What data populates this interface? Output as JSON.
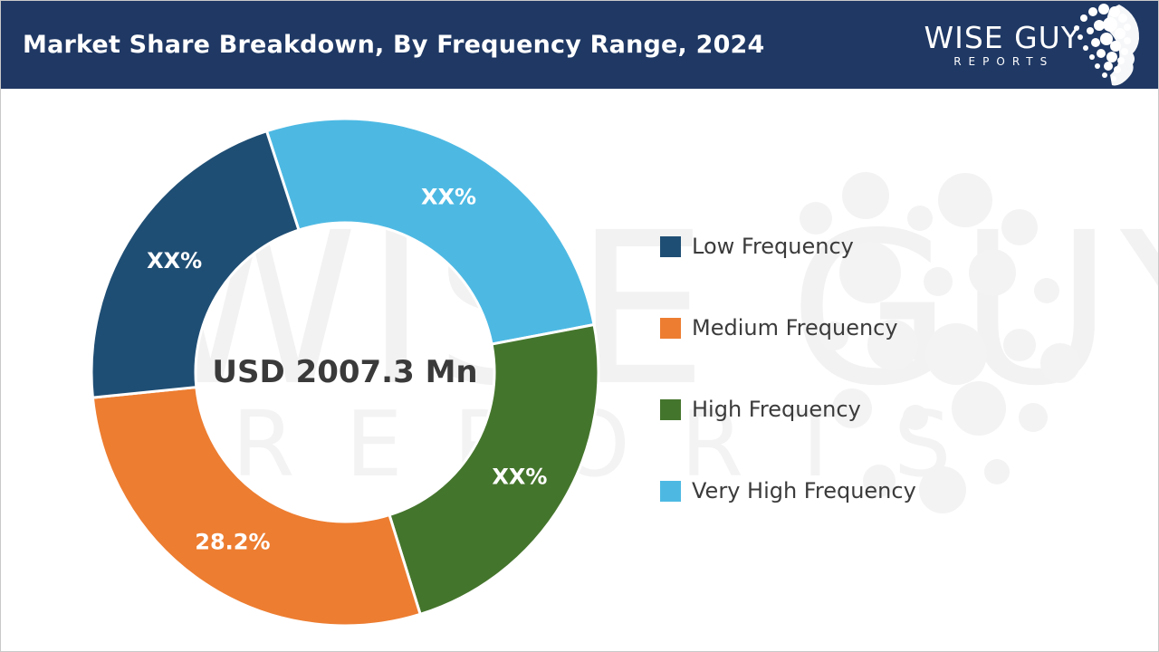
{
  "header": {
    "title": "Market Share Breakdown, By Frequency Range, 2024",
    "bg_color": "#1f3864",
    "logo": {
      "line1": "WISE GUY",
      "line2": "REPORTS"
    }
  },
  "chart_data": {
    "type": "pie",
    "subtype": "donut",
    "title": "Market Share Breakdown, By Frequency Range, 2024",
    "center_label": "USD 2007.3 Mn",
    "start_angle_deg": -18,
    "direction": "clockwise",
    "legend_position": "right",
    "segments": [
      {
        "label": "Very High Frequency",
        "value_pct": 27.0,
        "display_label": "XX%",
        "color": "#4db9e3"
      },
      {
        "label": "High Frequency",
        "value_pct": 23.2,
        "display_label": "XX%",
        "color": "#44752c"
      },
      {
        "label": "Medium Frequency",
        "value_pct": 28.2,
        "display_label": "28.2%",
        "color": "#ed7d31"
      },
      {
        "label": "Low Frequency",
        "value_pct": 21.6,
        "display_label": "XX%",
        "color": "#1f4e74"
      }
    ],
    "legend": [
      {
        "label": "Low Frequency",
        "color": "#1f4e74"
      },
      {
        "label": "Medium Frequency",
        "color": "#ed7d31"
      },
      {
        "label": "High Frequency",
        "color": "#44752c"
      },
      {
        "label": "Very High Frequency",
        "color": "#4db9e3"
      }
    ]
  },
  "watermark": {
    "line1": "WISE GUY",
    "line2": "REPORTS"
  }
}
